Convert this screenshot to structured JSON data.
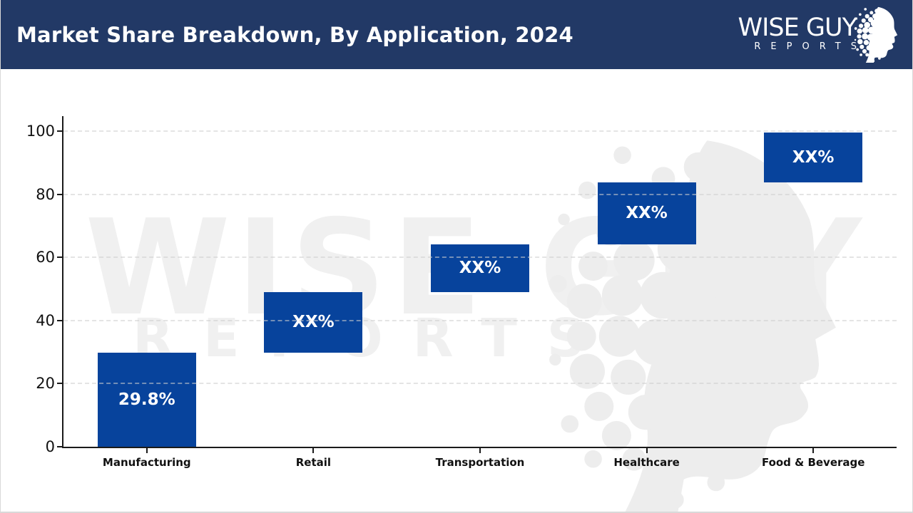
{
  "header": {
    "title": "Market Share Breakdown, By Application, 2024",
    "logo": {
      "line1": "WISE GUY",
      "line2": "REPORTS"
    }
  },
  "watermark": {
    "line1": "WISE GUY",
    "line2": "REPORTS"
  },
  "colors": {
    "header_bg": "#223966",
    "bar": "#07439c",
    "bar_label_text": "#ffffff",
    "axis": "#1a1a1a",
    "gridline": "#dcdcdc",
    "watermark": "#f0f0f0"
  },
  "chart_data": {
    "type": "bar",
    "subtype": "waterfall-floating-bars",
    "title": "Market Share Breakdown, By Application, 2024",
    "xlabel": "",
    "ylabel": "",
    "categories": [
      "Manufacturing",
      "Retail",
      "Transportation",
      "Healthcare",
      "Food & Beverage"
    ],
    "bars": [
      {
        "category": "Manufacturing",
        "start": 0,
        "end": 29.8,
        "label": "29.8%"
      },
      {
        "category": "Retail",
        "start": 29.8,
        "end": 49.0,
        "label": "XX%"
      },
      {
        "category": "Transportation",
        "start": 49.0,
        "end": 64.2,
        "label": "XX%"
      },
      {
        "category": "Healthcare",
        "start": 64.2,
        "end": 83.7,
        "label": "XX%"
      },
      {
        "category": "Food & Beverage",
        "start": 83.7,
        "end": 99.5,
        "label": "XX%"
      }
    ],
    "values": [
      29.8,
      19.2,
      15.2,
      19.5,
      15.8
    ],
    "yticks": [
      0,
      20,
      40,
      60,
      80,
      100
    ],
    "ylim": [
      0,
      103.6
    ],
    "grid": "horizontal-dashed",
    "legend": "none"
  }
}
